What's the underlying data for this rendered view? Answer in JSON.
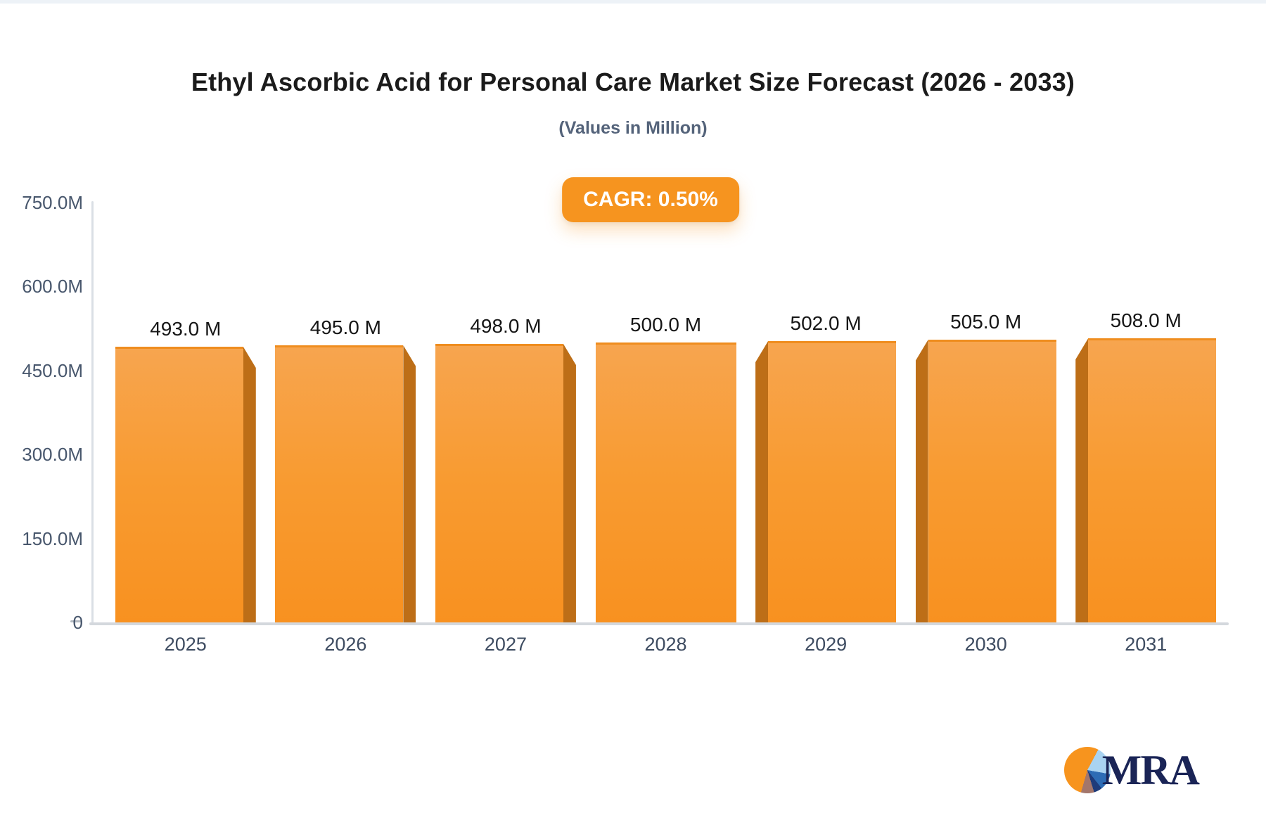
{
  "header": {
    "title": "Ethyl Ascorbic Acid for Personal Care Market Size Forecast (2026 - 2033)",
    "subtitle": "(Values in Million)",
    "cagr_badge": "CAGR: 0.50%"
  },
  "chart_data": {
    "type": "bar",
    "title": "Ethyl Ascorbic Acid for Personal Care Market Size Forecast (2026 - 2033)",
    "subtitle": "(Values in Million)",
    "annotation": "CAGR: 0.50%",
    "categories": [
      "2025",
      "2026",
      "2027",
      "2028",
      "2029",
      "2030",
      "2031"
    ],
    "values": [
      493,
      495,
      498,
      500,
      502,
      505,
      508
    ],
    "value_labels": [
      "493.0 M",
      "495.0 M",
      "498.0 M",
      "500.0 M",
      "502.0 M",
      "505.0 M",
      "508.0 M"
    ],
    "y_ticks": [
      {
        "label": "750.0M",
        "value": 750
      },
      {
        "label": "600.0M",
        "value": 600
      },
      {
        "label": "450.0M",
        "value": 450
      },
      {
        "label": "300.0M",
        "value": 300
      },
      {
        "label": "150.0M",
        "value": 150
      },
      {
        "label": "0",
        "value": 0
      }
    ],
    "ylim": [
      0,
      750
    ],
    "xlabel": "",
    "ylabel": "",
    "grid": false,
    "legend": "none",
    "colors": {
      "bar_top": "#f7a54f",
      "bar_bottom": "#f89120",
      "bar_side_3d": "#bd6e17",
      "badge": "#f6941f",
      "axis": "#d4d8dd",
      "tick_text": "#47566c",
      "category_text": "#3e4c61",
      "value_text": "#161616"
    }
  },
  "logo": {
    "text": "MRA",
    "icon": "pie-chart-icon",
    "pie_colors": [
      "#f7941e",
      "#a9d3f1",
      "#2d6cb5",
      "#1e3b7a",
      "#a3766b"
    ],
    "text_color": "#1a2456"
  }
}
